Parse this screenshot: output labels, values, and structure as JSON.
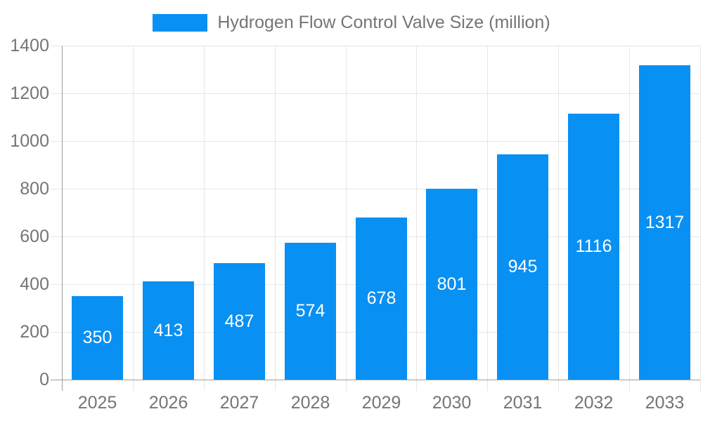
{
  "legend": {
    "label": "Hydrogen Flow Control Valve Size (million)"
  },
  "colors": {
    "bar": "#0990f3",
    "grid": "#e6e6e6",
    "axis": "#9e9e9e",
    "label": "#757575",
    "value_label": "#ffffff",
    "background": "#ffffff"
  },
  "chart_data": {
    "type": "bar",
    "title": "Hydrogen Flow Control Valve Size (million)",
    "categories": [
      "2025",
      "2026",
      "2027",
      "2028",
      "2029",
      "2030",
      "2031",
      "2032",
      "2033"
    ],
    "values": [
      350,
      413,
      487,
      574,
      678,
      801,
      945,
      1116,
      1317
    ],
    "value_labels": [
      "350",
      "413",
      "487",
      "574",
      "678",
      "801",
      "945",
      "1116",
      "1317"
    ],
    "xlabel": "",
    "ylabel": "",
    "ylim": [
      0,
      1400
    ],
    "yticks": [
      0,
      200,
      400,
      600,
      800,
      1000,
      1200,
      1400
    ],
    "ytick_labels": [
      "0",
      "200",
      "400",
      "600",
      "800",
      "1000",
      "1200",
      "1400"
    ],
    "grid": true,
    "legend_position": "top-center",
    "value_label_position": "inside-center"
  }
}
